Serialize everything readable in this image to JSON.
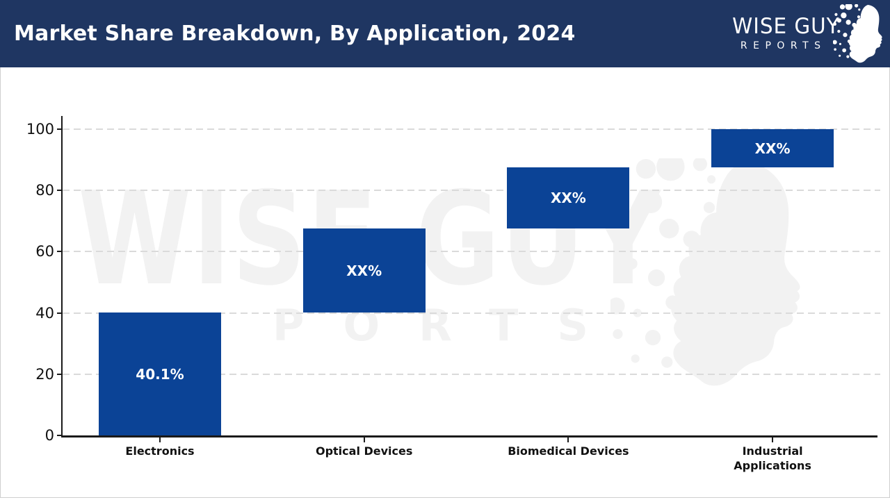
{
  "header": {
    "title": "Market Share Breakdown, By Application, 2024",
    "bg_color": "#1f3662",
    "logo": {
      "line1": "WISE GUY",
      "line2": "REPORTS"
    }
  },
  "watermark": {
    "line1": "WISE GUY",
    "line2": "PORTS"
  },
  "chart_data": {
    "type": "bar",
    "subtype": "floating-segment-waterfall",
    "title": "Market Share Breakdown, By Application, 2024",
    "categories": [
      "Electronics",
      "Optical Devices",
      "Biomedical Devices",
      "Industrial Applications"
    ],
    "segments": [
      {
        "category": "Electronics",
        "start": 0,
        "end": 40.1,
        "label": "40.1%"
      },
      {
        "category": "Optical Devices",
        "start": 40.1,
        "end": 67.5,
        "label": "XX%"
      },
      {
        "category": "Biomedical Devices",
        "start": 67.5,
        "end": 87.5,
        "label": "XX%"
      },
      {
        "category": "Industrial Applications",
        "start": 87.5,
        "end": 100,
        "label": "XX%"
      }
    ],
    "y_ticks": [
      0,
      20,
      40,
      60,
      80,
      100
    ],
    "ylim": [
      0,
      104
    ],
    "xlabel": "",
    "ylabel": "",
    "bar_color": "#0b4396",
    "bar_label_color": "#ffffff",
    "grid": "horizontal-dashed",
    "legend": "none"
  }
}
